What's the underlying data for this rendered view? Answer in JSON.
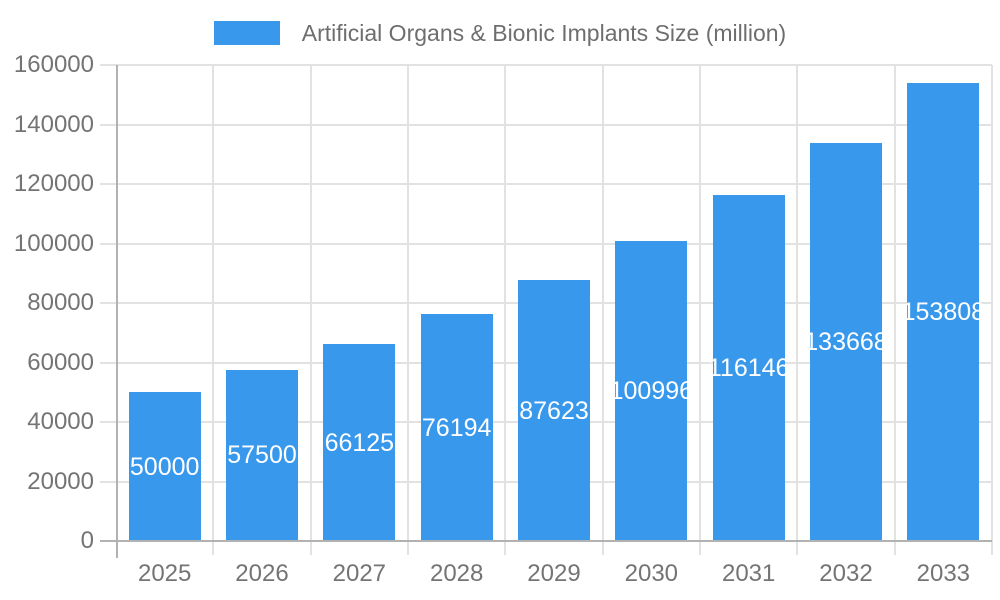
{
  "chart_data": {
    "type": "bar",
    "title": "Artificial Organs & Bionic Implants Size (million)",
    "categories": [
      "2025",
      "2026",
      "2027",
      "2028",
      "2029",
      "2030",
      "2031",
      "2032",
      "2033"
    ],
    "values": [
      50000,
      57500,
      66125,
      76194,
      87623,
      100996,
      116146,
      133668,
      153808
    ],
    "xlabel": "",
    "ylabel": "",
    "ylim": [
      0,
      160000
    ],
    "ytick_step": 20000,
    "ytick_labels": [
      "0",
      "20000",
      "40000",
      "60000",
      "80000",
      "100000",
      "120000",
      "140000",
      "160000"
    ],
    "grid": true,
    "legend_position": "top-center",
    "value_labels": "inside-center-white",
    "colors": {
      "bar": "#3898ec",
      "value_label_text": "#ffffff",
      "axis_tick_text": "#747474",
      "legend_text": "#6e6e6e",
      "gridline": "#e2e2e2",
      "axis_line": "#b2b2b2",
      "background": "#ffffff"
    }
  },
  "legend": {
    "label": "Artificial Organs & Bionic Implants Size (million)"
  }
}
